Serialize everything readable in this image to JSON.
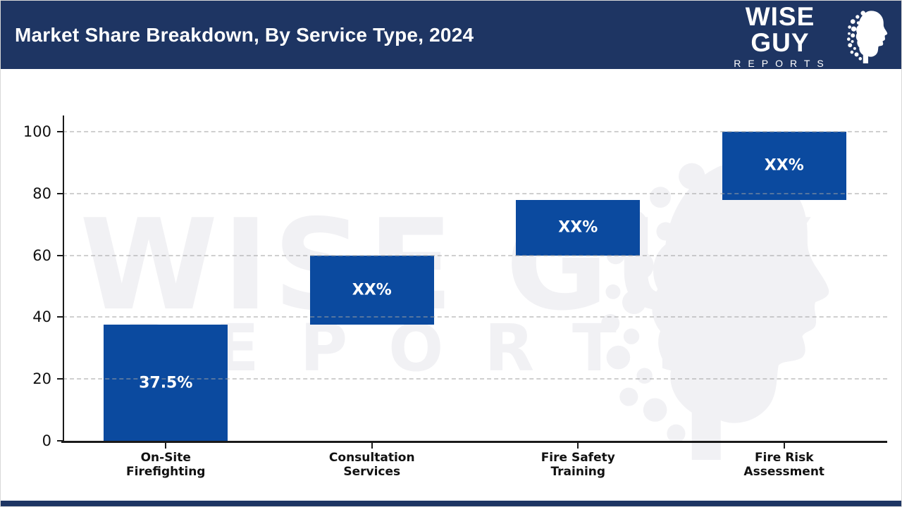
{
  "header": {
    "title": "Market Share Breakdown, By Service Type, 2024",
    "logo": {
      "name": "WISE GUY",
      "sub": "REPORTS"
    }
  },
  "watermark": {
    "line1": "WISE GUY",
    "line2": "REPORTS"
  },
  "footer": {},
  "chart_data": {
    "type": "bar",
    "subtype": "waterfall",
    "title": "Market Share Breakdown, By Service Type, 2024",
    "categories": [
      "On-Site Firefighting",
      "Consultation Services",
      "Fire Safety Training",
      "Fire Risk Assessment"
    ],
    "bars": [
      {
        "category_line1": "On-Site",
        "category_line2": "Firefighting",
        "start": 0,
        "end": 37.5,
        "label": "37.5%"
      },
      {
        "category_line1": "Consultation",
        "category_line2": "Services",
        "start": 37.5,
        "end": 60,
        "label": "XX%"
      },
      {
        "category_line1": "Fire Safety",
        "category_line2": "Training",
        "start": 60,
        "end": 78,
        "label": "XX%"
      },
      {
        "category_line1": "Fire Risk",
        "category_line2": "Assessment",
        "start": 78,
        "end": 100,
        "label": "XX%"
      }
    ],
    "xlabel": "",
    "ylabel": "",
    "y_ticks": [
      0,
      20,
      40,
      60,
      80,
      100
    ],
    "ylim": [
      0,
      105
    ],
    "grid": "dashed horizontal",
    "legend": "none",
    "colors": {
      "bar_fill": "#0b4a9f",
      "bar_value_text": "#ffffff",
      "header_bg": "#1e3563",
      "axis": "#1a1a1a",
      "gridline": "#d9d9d9",
      "watermark": "#f1f1f4"
    }
  }
}
